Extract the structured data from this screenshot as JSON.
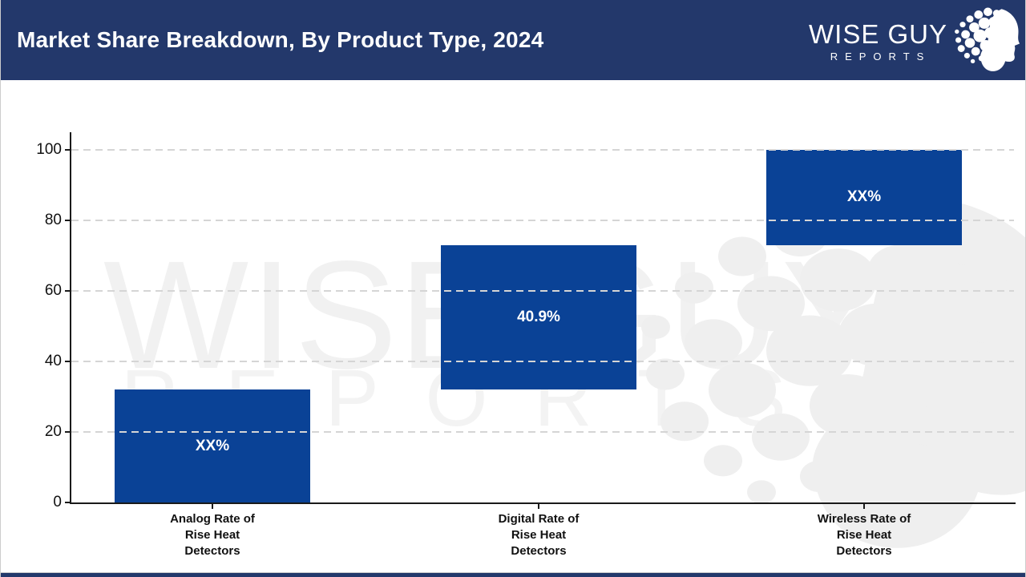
{
  "header": {
    "title": "Market Share Breakdown, By Product Type, 2024",
    "logo": {
      "line1": "WISE GUY",
      "line2": "REPORTS"
    }
  },
  "watermark": {
    "line1": "WISE GUY",
    "line2": "REPORTS"
  },
  "colors": {
    "header_bg": "#23386b",
    "bar_fill": "#0a4296",
    "bar_label_text": "#ffffff",
    "grid_line": "#d5d5d5",
    "axis": "#1a1a1a",
    "watermark": "#f0f0f0",
    "footer_bar": "#23386b"
  },
  "chart_data": {
    "type": "bar",
    "subtype": "floating-waterfall",
    "title": "Market Share Breakdown, By Product Type, 2024",
    "xlabel": "",
    "ylabel": "",
    "ylim": [
      0,
      100
    ],
    "yticks": [
      0,
      20,
      40,
      60,
      80,
      100
    ],
    "grid": "horizontal-dashed",
    "legend": "none",
    "categories": [
      [
        "Analog Rate of",
        "Rise Heat",
        "Detectors"
      ],
      [
        "Digital Rate of",
        "Rise Heat",
        "Detectors"
      ],
      [
        "Wireless Rate of",
        "Rise Heat",
        "Detectors"
      ]
    ],
    "bars": [
      {
        "label": "XX%",
        "start": 0,
        "end": 32
      },
      {
        "label": "40.9%",
        "start": 32,
        "end": 72.9
      },
      {
        "label": "XX%",
        "start": 72.9,
        "end": 100
      }
    ]
  }
}
